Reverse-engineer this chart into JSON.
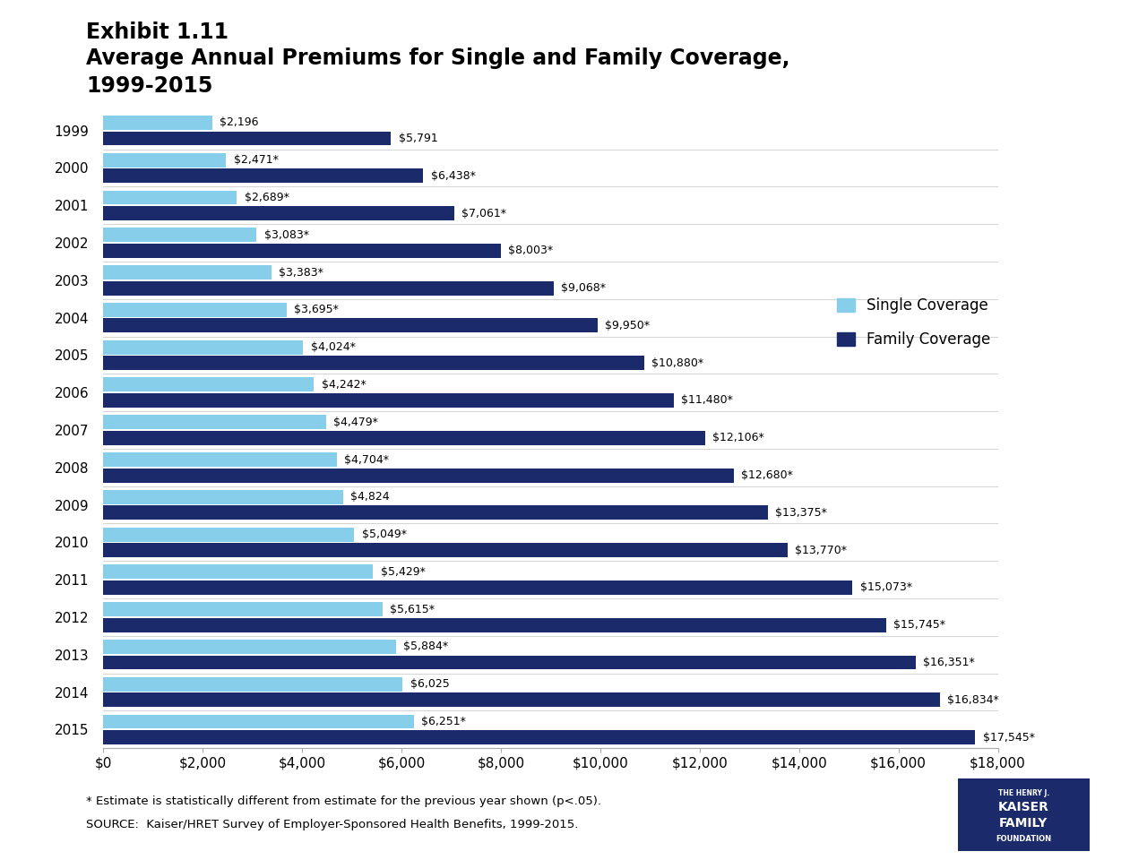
{
  "title_line1": "Exhibit 1.11",
  "title_line2": "Average Annual Premiums for Single and Family Coverage,",
  "title_line3": "1999-2015",
  "years": [
    1999,
    2000,
    2001,
    2002,
    2003,
    2004,
    2005,
    2006,
    2007,
    2008,
    2009,
    2010,
    2011,
    2012,
    2013,
    2014,
    2015
  ],
  "single_values": [
    2196,
    2471,
    2689,
    3083,
    3383,
    3695,
    4024,
    4242,
    4479,
    4704,
    4824,
    5049,
    5429,
    5615,
    5884,
    6025,
    6251
  ],
  "family_values": [
    5791,
    6438,
    7061,
    8003,
    9068,
    9950,
    10880,
    11480,
    12106,
    12680,
    13375,
    13770,
    15073,
    15745,
    16351,
    16834,
    17545
  ],
  "single_labels": [
    "$2,196",
    "$2,471*",
    "$2,689*",
    "$3,083*",
    "$3,383*",
    "$3,695*",
    "$4,024*",
    "$4,242*",
    "$4,479*",
    "$4,704*",
    "$4,824",
    "$5,049*",
    "$5,429*",
    "$5,615*",
    "$5,884*",
    "$6,025",
    "$6,251*"
  ],
  "family_labels": [
    "$5,791",
    "$6,438*",
    "$7,061*",
    "$8,003*",
    "$9,068*",
    "$9,950*",
    "$10,880*",
    "$11,480*",
    "$12,106*",
    "$12,680*",
    "$13,375*",
    "$13,770*",
    "$15,073*",
    "$15,745*",
    "$16,351*",
    "$16,834*",
    "$17,545*"
  ],
  "single_color": "#87CEEB",
  "family_color": "#1B2A6B",
  "background_color": "#FFFFFF",
  "xlim": [
    0,
    18000
  ],
  "xticks": [
    0,
    2000,
    4000,
    6000,
    8000,
    10000,
    12000,
    14000,
    16000,
    18000
  ],
  "xtick_labels": [
    "$0",
    "$2,000",
    "$4,000",
    "$6,000",
    "$8,000",
    "$10,000",
    "$12,000",
    "$14,000",
    "$16,000",
    "$18,000"
  ],
  "footnote1": "* Estimate is statistically different from estimate for the previous year shown (p<.05).",
  "footnote2": "SOURCE:  Kaiser/HRET Survey of Employer-Sponsored Health Benefits, 1999-2015.",
  "legend_single": "Single Coverage",
  "legend_family": "Family Coverage",
  "bar_height": 0.38,
  "bar_gap": 0.04
}
